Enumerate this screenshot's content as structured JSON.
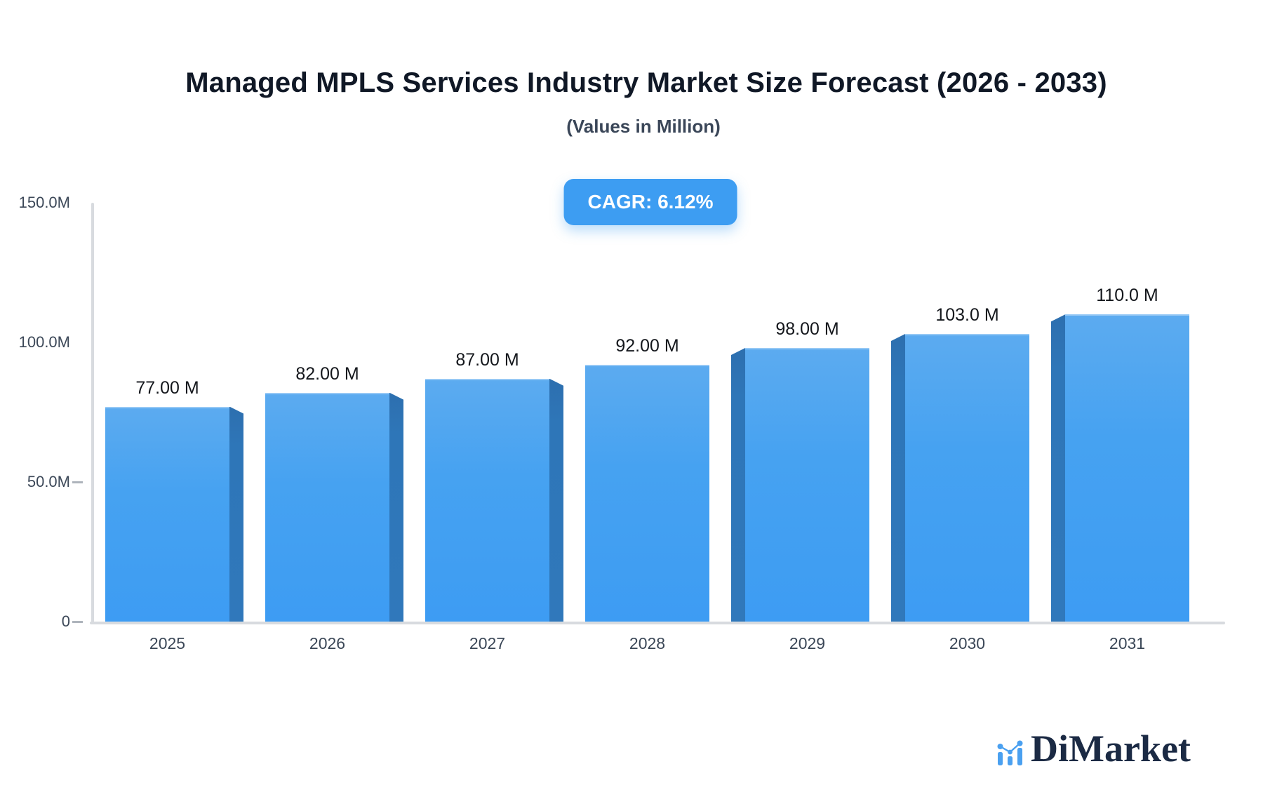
{
  "header": {
    "title": "Managed MPLS Services Industry Market Size Forecast (2026 - 2033)",
    "subtitle": "(Values in Million)",
    "cagr_badge": "CAGR: 6.12%"
  },
  "chart_data": {
    "type": "bar",
    "title": "Managed MPLS Services Industry Market Size Forecast (2026 - 2033)",
    "subtitle": "(Values in Million)",
    "unit": "Million",
    "categories": [
      "2025",
      "2026",
      "2027",
      "2028",
      "2029",
      "2030",
      "2031"
    ],
    "values": [
      77,
      82,
      87,
      92,
      98,
      103,
      110
    ],
    "value_labels": [
      "77.00 M",
      "82.00 M",
      "87.00 M",
      "92.00 M",
      "98.00 M",
      "103.0 M",
      "110.0 M"
    ],
    "xlabel": "",
    "ylabel": "",
    "ylim": [
      0,
      150
    ],
    "y_ticks": [
      {
        "label": "150.0M",
        "value": 150
      },
      {
        "label": "100.0M",
        "value": 100
      },
      {
        "label": "50.0M",
        "value": 50
      },
      {
        "label": "0",
        "value": 0
      }
    ],
    "grid": false,
    "legend": false,
    "annotation": "CAGR: 6.12%",
    "bar_color": "#419ff2",
    "bar_side_color": "#2e76b8",
    "effect": "3d-perspective-center"
  },
  "logo": {
    "text": "DiMarket",
    "icon": "mini-bar-chart-icon",
    "text_color": "#1b2a44",
    "icon_color": "#4aa0f0"
  }
}
